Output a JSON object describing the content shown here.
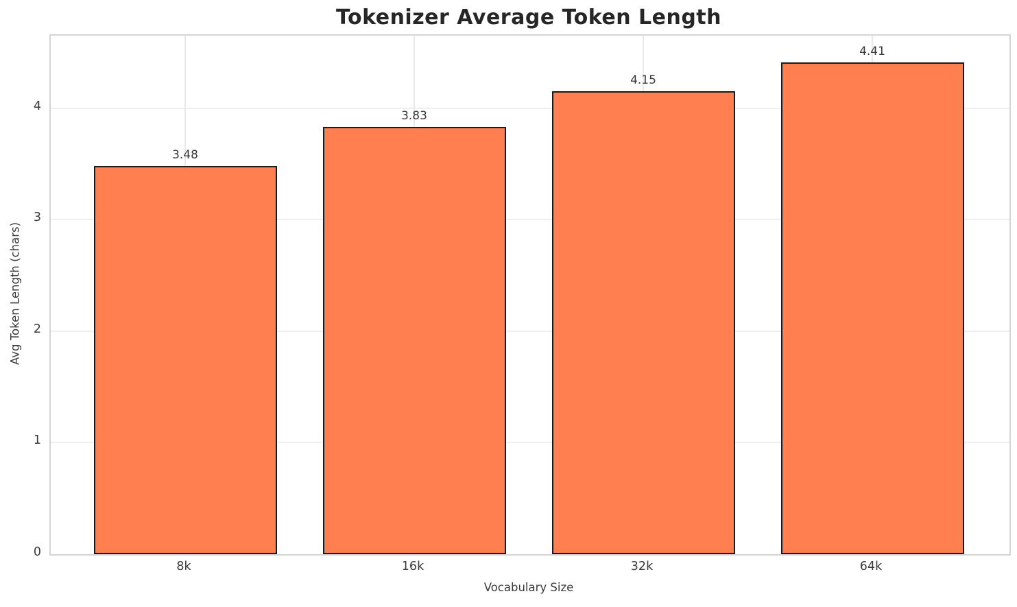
{
  "chart_data": {
    "type": "bar",
    "title": "Tokenizer Average Token Length",
    "xlabel": "Vocabulary Size",
    "ylabel": "Avg Token Length (chars)",
    "categories": [
      "8k",
      "16k",
      "32k",
      "64k"
    ],
    "values": [
      3.48,
      3.83,
      4.15,
      4.41
    ],
    "value_labels": [
      "3.48",
      "3.83",
      "4.15",
      "4.41"
    ],
    "yticks": [
      0,
      1,
      2,
      3,
      4
    ],
    "ylim": [
      0,
      4.65
    ],
    "grid": true,
    "legend_position": "none",
    "bar_color": "#FF7F50",
    "bar_edge_color": "#1a1a1a",
    "grid_color": "#efefef",
    "spine_color": "#d4d4d4",
    "text_color": "#3a3a3a",
    "title_color": "#262626"
  }
}
